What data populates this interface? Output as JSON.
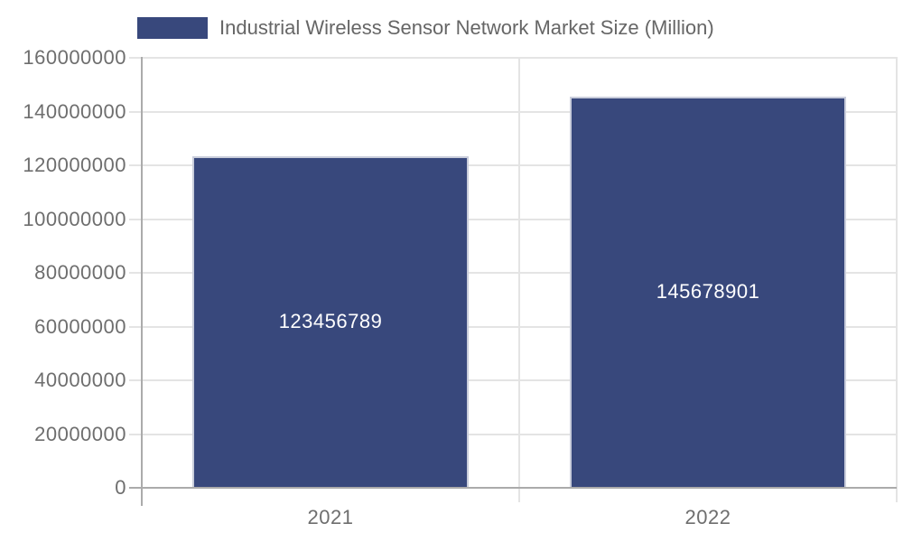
{
  "chart_data": {
    "type": "bar",
    "title": "",
    "legend_position": "top",
    "categories": [
      "2021",
      "2022"
    ],
    "series": [
      {
        "name": "Industrial Wireless Sensor Network Market Size (Million)",
        "values": [
          123456789,
          145678901
        ],
        "color": "#38487C"
      }
    ],
    "bar_value_labels": [
      "123456789",
      "145678901"
    ],
    "y_tick_labels": [
      "0",
      "20000000",
      "40000000",
      "60000000",
      "80000000",
      "100000000",
      "120000000",
      "140000000",
      "160000000"
    ],
    "ylim": [
      0,
      160000000
    ],
    "ytick_step": 20000000,
    "grid": true,
    "colors": {
      "bar": "#38487C",
      "bar_border": "#C9CDDB",
      "grid_line": "#E4E4E4",
      "axis_line": "#ABABAB",
      "tick_label": "#6E6E6E",
      "legend_text": "#666666",
      "bar_label": "#FFFFFF",
      "background": "#FFFFFF"
    }
  }
}
